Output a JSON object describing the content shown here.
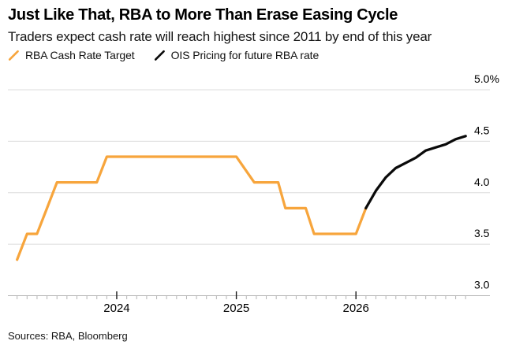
{
  "header": {
    "title": "Just Like That, RBA to More Than Erase Easing Cycle",
    "subtitle": "Traders expect cash rate will reach highest since 2011 by end of this year"
  },
  "legend": {
    "items": [
      {
        "label": "RBA Cash Rate Target",
        "color": "#F7A53C"
      },
      {
        "label": "OIS Pricing for future RBA rate",
        "color": "#0A0A0A"
      }
    ]
  },
  "footer": {
    "source": "Sources: RBA, Bloomberg"
  },
  "colors": {
    "background": "#FFFFFF",
    "grid": "#DCDCDC",
    "axis": "#B5B5B5",
    "year_tick": "#1A1A1A",
    "label_text": "#000000"
  },
  "chart_data": {
    "type": "line",
    "title": "Just Like That, RBA to More Than Erase Easing Cycle",
    "subtitle": "Traders expect cash rate will reach highest since 2011 by end of this year",
    "x_axis": {
      "labels": [
        "2024",
        "2025",
        "2026"
      ],
      "values": [
        2024,
        2025,
        2026
      ],
      "range": [
        2023.09,
        2027.12
      ],
      "minor_tick_interval": 0.08333,
      "minor_tick_range": [
        2023.167,
        2026.917
      ]
    },
    "y_axis": {
      "labels": [
        "5.0%",
        "4.5",
        "4.0",
        "3.5",
        "3.0"
      ],
      "values": [
        5.0,
        4.5,
        4.0,
        3.5,
        3.0
      ],
      "range": [
        3.0,
        5.0
      ],
      "unit": "%",
      "grid": true
    },
    "legend_position": "top-left",
    "series": [
      {
        "name": "RBA Cash Rate Target",
        "color": "#F7A53C",
        "points": [
          [
            2023.167,
            3.35
          ],
          [
            2023.25,
            3.6
          ],
          [
            2023.333,
            3.6
          ],
          [
            2023.417,
            3.85
          ],
          [
            2023.5,
            4.1
          ],
          [
            2023.833,
            4.1
          ],
          [
            2023.917,
            4.35
          ],
          [
            2025.0,
            4.35
          ],
          [
            2025.15,
            4.1
          ],
          [
            2025.35,
            4.1
          ],
          [
            2025.41,
            3.85
          ],
          [
            2025.58,
            3.85
          ],
          [
            2025.65,
            3.6
          ],
          [
            2026.0,
            3.6
          ],
          [
            2026.083,
            3.85
          ]
        ]
      },
      {
        "name": "OIS Pricing for future RBA rate",
        "color": "#0A0A0A",
        "points": [
          [
            2026.083,
            3.85
          ],
          [
            2026.167,
            4.02
          ],
          [
            2026.25,
            4.15
          ],
          [
            2026.333,
            4.24
          ],
          [
            2026.417,
            4.29
          ],
          [
            2026.5,
            4.34
          ],
          [
            2026.583,
            4.41
          ],
          [
            2026.667,
            4.44
          ],
          [
            2026.75,
            4.47
          ],
          [
            2026.833,
            4.52
          ],
          [
            2026.917,
            4.55
          ]
        ]
      }
    ]
  }
}
